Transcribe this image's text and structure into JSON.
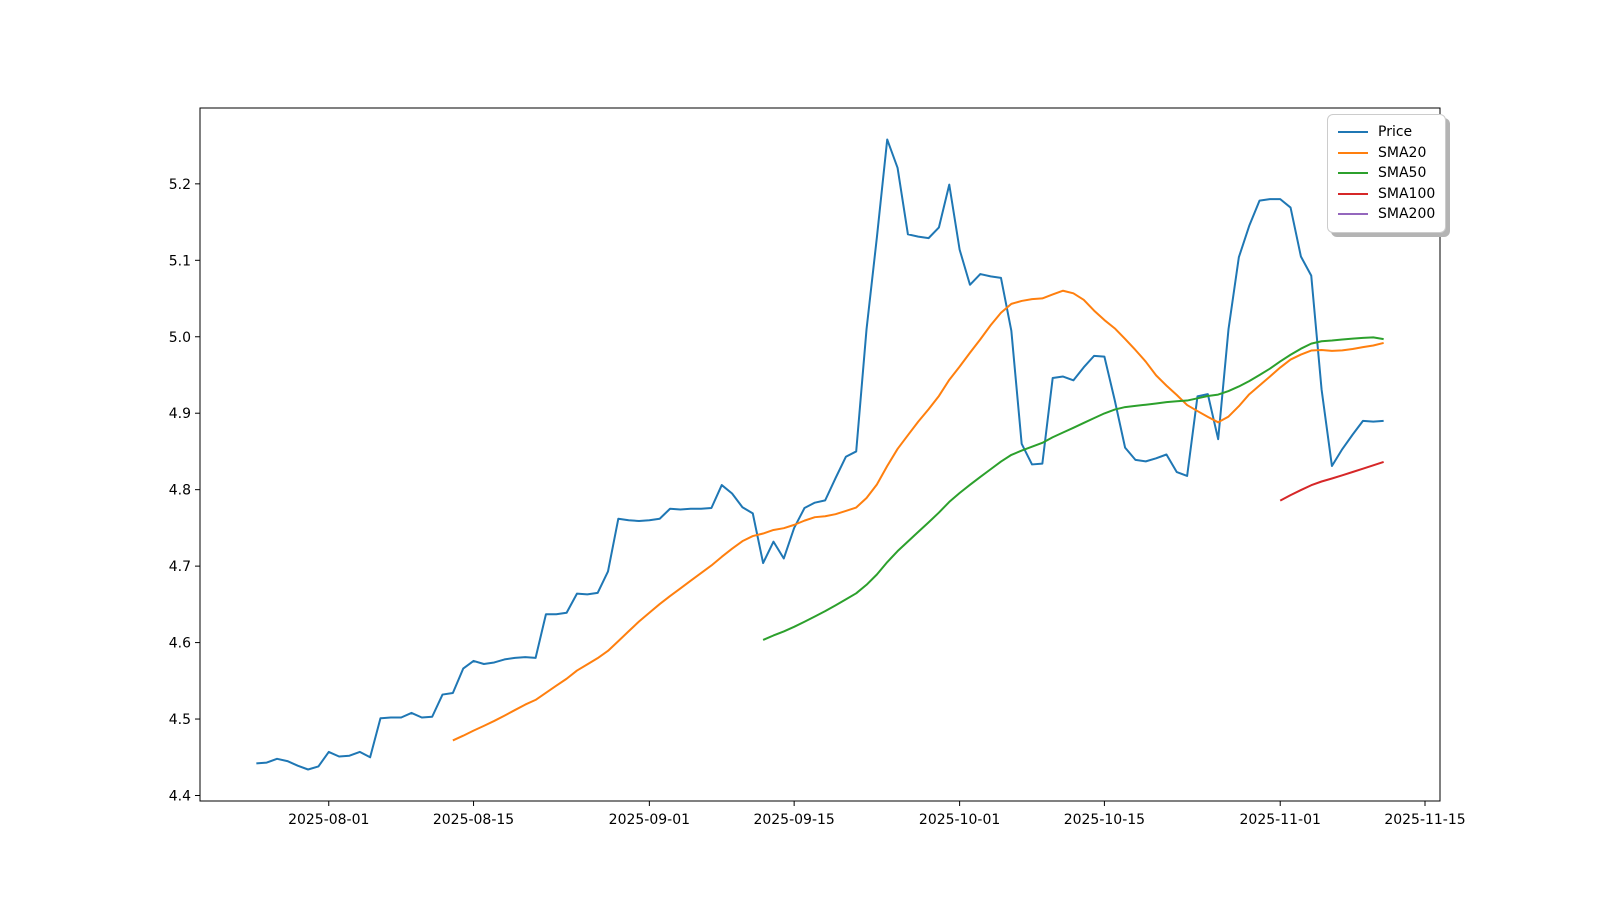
{
  "figure": {
    "background": "#ffffff",
    "axes_edge_color": "#000000",
    "text_color": "#000000"
  },
  "chart_data": {
    "type": "line",
    "title": "",
    "xlabel": "",
    "ylabel": "",
    "grid": false,
    "legend_position": "upper right",
    "legend_shadow": true,
    "x_start_date": "2025-07-25",
    "x_end_date": "2025-11-11",
    "x_frequency": "daily",
    "x_ticks": [
      {
        "index": 7,
        "label": "2025-08-01"
      },
      {
        "index": 21,
        "label": "2025-08-15"
      },
      {
        "index": 38,
        "label": "2025-09-01"
      },
      {
        "index": 52,
        "label": "2025-09-15"
      },
      {
        "index": 68,
        "label": "2025-10-01"
      },
      {
        "index": 82,
        "label": "2025-10-15"
      },
      {
        "index": 99,
        "label": "2025-11-01"
      },
      {
        "index": 113,
        "label": "2025-11-15"
      }
    ],
    "y_ticks": [
      4.4,
      4.5,
      4.6,
      4.7,
      4.8,
      4.9,
      5.0,
      5.1,
      5.2
    ],
    "y_tick_labels": [
      "4.4",
      "4.5",
      "4.6",
      "4.7",
      "4.8",
      "4.9",
      "5.0",
      "5.1",
      "5.2"
    ],
    "ylim": [
      4.3928,
      5.2992
    ],
    "xlim_index": [
      -5.45,
      114.45
    ],
    "series": [
      {
        "name": "Price",
        "color": "#1f77b4",
        "kind": "price"
      },
      {
        "name": "SMA20",
        "color": "#ff7f0e",
        "kind": "sma",
        "window": 20
      },
      {
        "name": "SMA50",
        "color": "#2ca02c",
        "kind": "sma",
        "window": 50
      },
      {
        "name": "SMA100",
        "color": "#d62728",
        "kind": "sma",
        "window": 100
      },
      {
        "name": "SMA200",
        "color": "#9467bd",
        "kind": "sma",
        "window": 200
      }
    ],
    "price": [
      4.442,
      4.443,
      4.448,
      4.445,
      4.439,
      4.434,
      4.438,
      4.457,
      4.451,
      4.452,
      4.457,
      4.45,
      4.501,
      4.502,
      4.502,
      4.508,
      4.502,
      4.503,
      4.532,
      4.534,
      4.566,
      4.576,
      4.572,
      4.574,
      4.578,
      4.58,
      4.581,
      4.58,
      4.637,
      4.637,
      4.639,
      4.664,
      4.663,
      4.665,
      4.693,
      4.762,
      4.76,
      4.759,
      4.76,
      4.762,
      4.775,
      4.774,
      4.775,
      4.775,
      4.776,
      4.806,
      4.795,
      4.777,
      4.769,
      4.704,
      4.732,
      4.71,
      4.75,
      4.776,
      4.783,
      4.786,
      4.815,
      4.843,
      4.85,
      5.01,
      5.13,
      5.258,
      5.221,
      5.134,
      5.131,
      5.129,
      5.143,
      5.199,
      5.114,
      5.068,
      5.082,
      5.079,
      5.077,
      5.008,
      4.86,
      4.833,
      4.834,
      4.946,
      4.948,
      4.943,
      4.96,
      4.975,
      4.974,
      4.917,
      4.855,
      4.839,
      4.837,
      4.841,
      4.846,
      4.823,
      4.818,
      4.922,
      4.925,
      4.866,
      5.01,
      5.104,
      5.145,
      5.178,
      5.18,
      5.18,
      5.169,
      5.105,
      5.08,
      4.931,
      4.831,
      4.853,
      4.872,
      4.89,
      4.889,
      4.89
    ]
  }
}
